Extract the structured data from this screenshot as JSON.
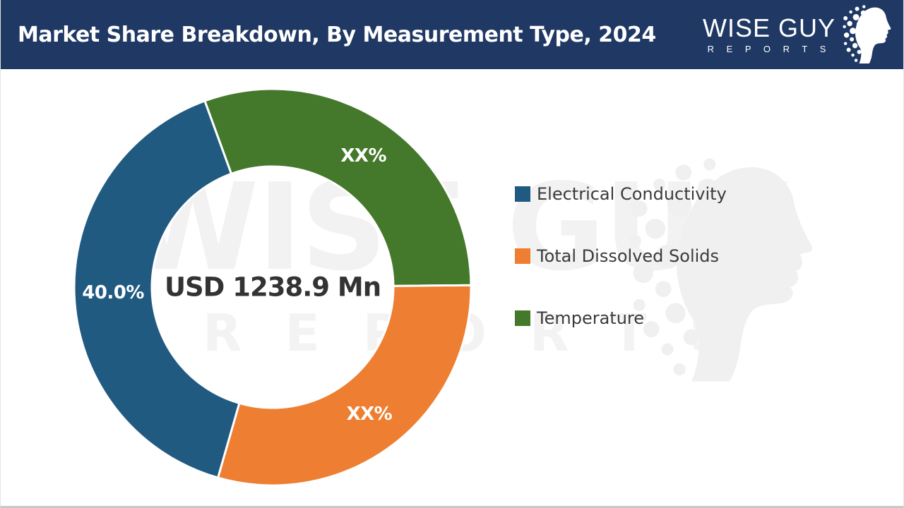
{
  "header": {
    "title": "Market Share Breakdown, By Measurement Type, 2024",
    "logo": {
      "line1": "WISE GUY",
      "line2": "R E P O R T S"
    }
  },
  "watermark": {
    "line1": "WISE GUY",
    "line2": "R E P O R T S"
  },
  "chart_data": {
    "type": "donut",
    "title": "Market Share Breakdown, By Measurement Type, 2024",
    "center_label": "USD 1238.9 Mn",
    "units": "percent",
    "start_angle_deg": 110,
    "direction": "counterclockwise",
    "inner_radius_ratio": 0.61,
    "legend_position": "right",
    "segments": [
      {
        "label": "Electrical Conductivity",
        "value_pct": 40.0,
        "display_label": "40.0%",
        "color": "#215A81"
      },
      {
        "label": "Total Dissolved Solids",
        "value_pct": 29.6,
        "display_label": "XX%",
        "color": "#EE7E31"
      },
      {
        "label": "Temperature",
        "value_pct": 30.4,
        "display_label": "XX%",
        "color": "#44782A"
      }
    ]
  },
  "colors": {
    "header_bg": "#1F3864",
    "center_text": "#333333",
    "legend_text": "#3A3A3A",
    "watermark": "#F2F2F2",
    "segment_label_text": "#FFFFFF"
  }
}
